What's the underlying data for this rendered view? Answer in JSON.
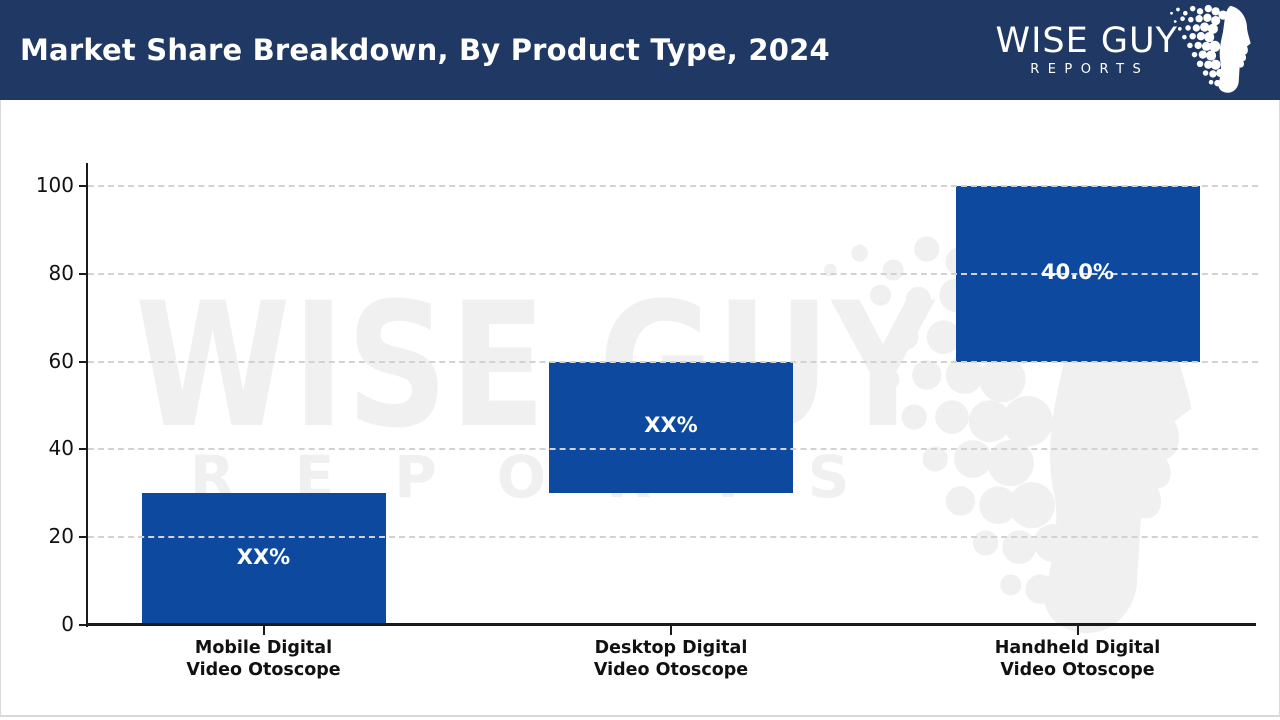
{
  "header": {
    "title": "Market Share Breakdown, By Product Type, 2024",
    "logo": {
      "wordmark": "WISE GUY",
      "subtext": "REPORTS"
    }
  },
  "chart_data": {
    "type": "bar",
    "subtype": "floating-segment-waterfall",
    "title": "Market Share Breakdown, By Product Type, 2024",
    "categories": [
      [
        "Mobile Digital",
        "Video Otoscope"
      ],
      [
        "Desktop Digital",
        "Video Otoscope"
      ],
      [
        "Handheld Digital",
        "Video Otoscope"
      ]
    ],
    "series": [
      {
        "name": "Market Share (%)",
        "segments": [
          {
            "category": "Mobile Digital Video Otoscope",
            "from": 0,
            "to": 30,
            "label": "XX%"
          },
          {
            "category": "Desktop Digital Video Otoscope",
            "from": 30,
            "to": 60,
            "label": "XX%"
          },
          {
            "category": "Handheld Digital Video Otoscope",
            "from": 60,
            "to": 100,
            "label": "40.0%"
          }
        ]
      }
    ],
    "yticks": [
      0,
      20,
      40,
      60,
      80,
      100
    ],
    "ylim": [
      0,
      105
    ],
    "xlabel": "",
    "ylabel": "",
    "grid": "horizontal-dashed",
    "legend": "none",
    "bar_color": "#0d4a9f",
    "bar_label_color": "#ffffff"
  },
  "watermark": {
    "line1": "WISE GUY",
    "line2": "REPORTS"
  },
  "colors": {
    "header_bg": "#1f3864",
    "bar": "#0d4a9f",
    "grid": "#d2d2d2",
    "axis": "#1a1a1a",
    "page_border": "#d9d9d9"
  }
}
